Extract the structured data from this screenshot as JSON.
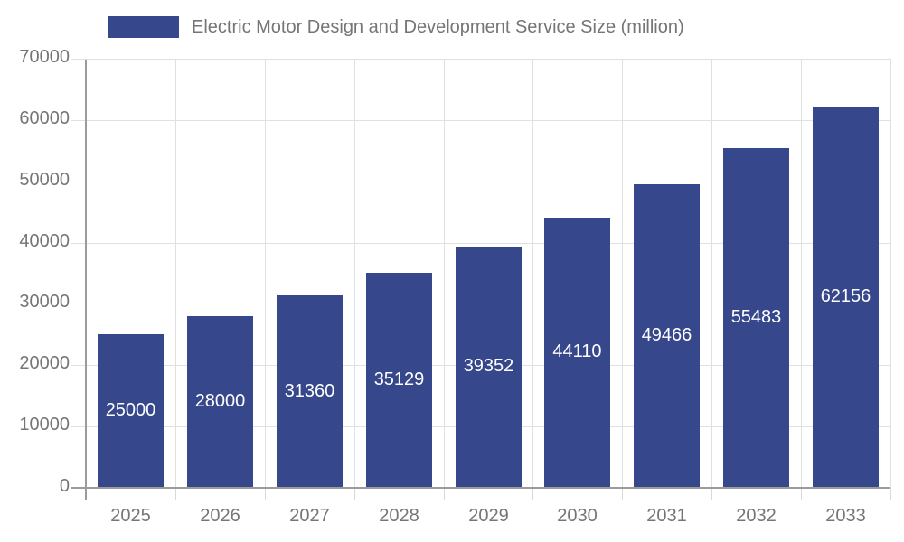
{
  "chart_data": {
    "type": "bar",
    "title": "Electric Motor Design and Development Service Size (million)",
    "categories": [
      "2025",
      "2026",
      "2027",
      "2028",
      "2029",
      "2030",
      "2031",
      "2032",
      "2033"
    ],
    "values": [
      25000,
      28000,
      31360,
      35129,
      39352,
      44110,
      49466,
      55483,
      62156
    ],
    "xlabel": "",
    "ylabel": "",
    "ylim": [
      0,
      70000
    ],
    "ytick_step": 10000,
    "grid": true,
    "legend_position": "top-left",
    "value_labels": "inside-center"
  },
  "colors": {
    "bar": "#36478b",
    "title_text": "#757575",
    "axis_text": "#757575",
    "grid_line": "#e0e0e0",
    "tick_line": "#d9d9d9",
    "axis_line": "#9b9b9b",
    "bar_label": "#ffffff",
    "background": "#ffffff"
  }
}
